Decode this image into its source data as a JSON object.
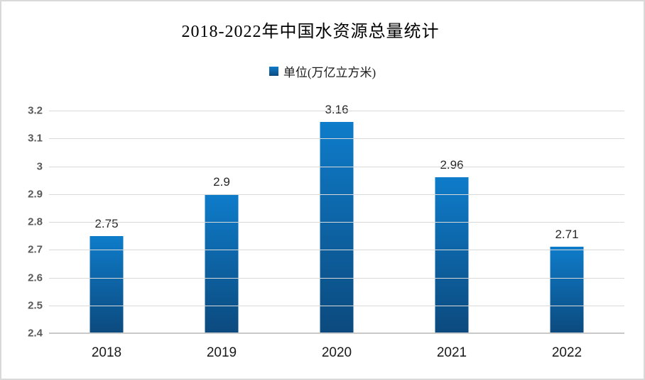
{
  "page": {
    "background_color": "#ffffff",
    "border_color": "#d9d9d9"
  },
  "chart_data": {
    "type": "bar",
    "title": "2018-2022年中国水资源总量统计",
    "legend": {
      "label": "单位(万亿立方米)",
      "position": "top"
    },
    "categories": [
      "2018",
      "2019",
      "2020",
      "2021",
      "2022"
    ],
    "values": [
      2.75,
      2.9,
      3.16,
      2.96,
      2.71
    ],
    "data_labels": [
      "2.75",
      "2.9",
      "3.16",
      "2.96",
      "2.71"
    ],
    "xlabel": "",
    "ylabel": "",
    "ylim": [
      2.4,
      3.2
    ],
    "ytick_labels": [
      "2.4",
      "2.5",
      "2.6",
      "2.7",
      "2.8",
      "2.9",
      "3",
      "3.1",
      "3.2"
    ],
    "grid": true,
    "colors": {
      "bar_gradient_top": "#0e7cca",
      "bar_gradient_bottom": "#0c4a7e",
      "gridline": "#d9d9d9",
      "axis_line": "#c9c9c9",
      "ytick_text": "#595959",
      "xtick_text": "#1a1a1a",
      "data_label_text": "#262626",
      "title_text": "#000000"
    }
  }
}
